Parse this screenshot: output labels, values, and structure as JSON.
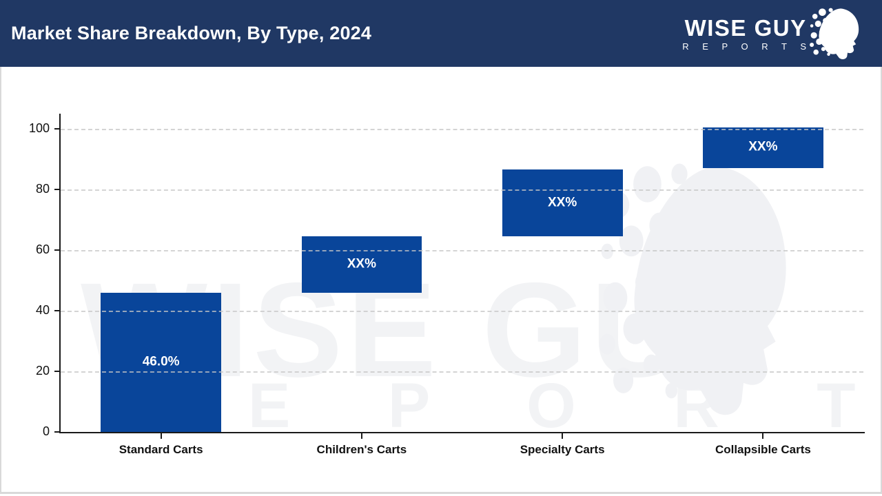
{
  "header": {
    "title": "Market Share Breakdown, By Type, 2024",
    "bg_color": "#203864"
  },
  "logo": {
    "line1": "WISE GUY",
    "line2": "R E P O R T S",
    "head_icon": "dotted-head-profile"
  },
  "watermark": {
    "line1": "WISE GUY",
    "line2": "R E P O R T S",
    "head_icon": "dotted-head-profile"
  },
  "chart_data": {
    "type": "bar",
    "subtype": "waterfall",
    "title": "Market Share Breakdown, By Type, 2024",
    "xlabel": "",
    "ylabel": "",
    "categories": [
      "Standard Carts",
      "Children's Carts",
      "Specialty Carts",
      "Collapsible Carts"
    ],
    "bars": [
      {
        "category": "Standard Carts",
        "start": 0,
        "end": 46,
        "label": "46.0%"
      },
      {
        "category": "Children's Carts",
        "start": 46,
        "end": 64.5,
        "label": "XX%"
      },
      {
        "category": "Specialty Carts",
        "start": 64.5,
        "end": 86.5,
        "label": "XX%"
      },
      {
        "category": "Collapsible Carts",
        "start": 87,
        "end": 100.5,
        "label": "XX%"
      }
    ],
    "yticks": [
      0,
      20,
      40,
      60,
      80,
      100
    ],
    "ylim": [
      0,
      105
    ],
    "grid": "horizontal-dashed",
    "legend": "none",
    "bar_color": "#09459a",
    "bar_label_color": "#ffffff",
    "axis_color": "#1a1a1a"
  }
}
